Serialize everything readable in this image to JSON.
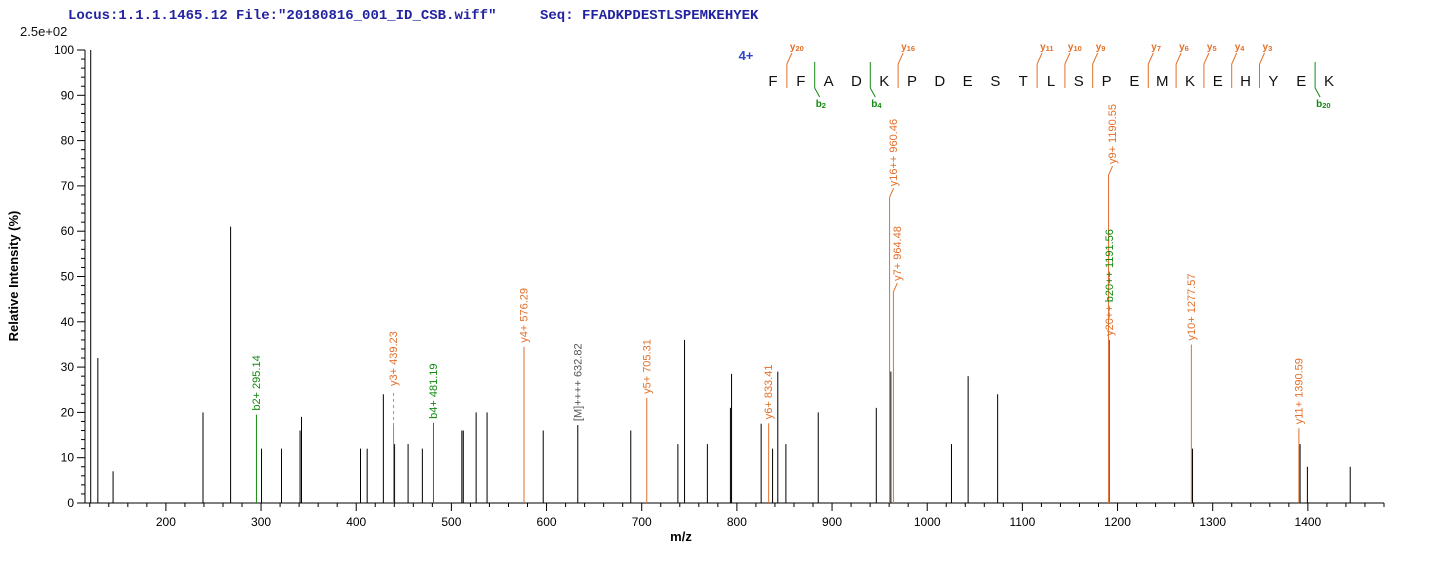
{
  "header": {
    "locus_file": "Locus:1.1.1.1465.12 File:\"20180816_001_ID_CSB.wiff\"",
    "seq": "Seq: FFADKPDESTLSPEMKEHYEK"
  },
  "scale_note": "2.5e+02",
  "chart_data": {
    "type": "bar",
    "kind": "MS/MS fragment spectrum",
    "xlabel": "m/z",
    "ylabel": "Relative Intensity (%)",
    "x_range": [
      115,
      1480
    ],
    "y_range": [
      0,
      100
    ],
    "x_major_ticks": [
      200,
      300,
      400,
      500,
      600,
      700,
      800,
      900,
      1000,
      1100,
      1200,
      1300,
      1400
    ],
    "x_minor_step": 20,
    "y_major_step": 10,
    "y_minor_step": 2,
    "colors": {
      "y_ion": "#e2702a",
      "b_ion": "#118a11",
      "overlap_ion": "#7a7a00",
      "neutral_label": "#555555",
      "peak": "#000000",
      "header_blue": "#2323a0",
      "charge_blue": "#2b47d0",
      "dashed_leader": "#999999"
    },
    "peaks": [
      [
        121,
        100
      ],
      [
        128.5,
        32
      ],
      [
        144.5,
        7
      ],
      [
        239,
        20
      ],
      [
        268,
        61
      ],
      [
        300.5,
        12
      ],
      [
        321.5,
        12
      ],
      [
        341,
        16
      ],
      [
        342.5,
        19
      ],
      [
        404.5,
        12
      ],
      [
        411.5,
        12
      ],
      [
        428.5,
        24
      ],
      [
        440.3,
        13
      ],
      [
        454.5,
        13
      ],
      [
        469.5,
        12
      ],
      [
        511,
        16
      ],
      [
        512.5,
        16
      ],
      [
        526,
        20
      ],
      [
        537.5,
        20
      ],
      [
        596.5,
        16
      ],
      [
        688.5,
        16
      ],
      [
        738,
        13
      ],
      [
        745,
        36
      ],
      [
        769,
        13
      ],
      [
        793.2,
        21
      ],
      [
        794.4,
        28.5
      ],
      [
        825.5,
        17.5
      ],
      [
        837.5,
        12
      ],
      [
        843,
        29
      ],
      [
        851.5,
        13
      ],
      [
        885.5,
        20
      ],
      [
        946.5,
        21
      ],
      [
        961.8,
        29
      ],
      [
        1025.5,
        13
      ],
      [
        1043,
        28
      ],
      [
        1074,
        24
      ],
      [
        1278.8,
        12
      ],
      [
        1391.8,
        13
      ],
      [
        1399.5,
        8
      ],
      [
        1444.5,
        8
      ]
    ],
    "annotations": [
      {
        "label": "b2+ 295.14",
        "mz": 295.14,
        "intensity": 19.5,
        "color": "b_ion",
        "leader": "none"
      },
      {
        "label": "y3+ 439.23",
        "mz": 439.23,
        "intensity": 17,
        "color": "y_ion",
        "leader": "dashed"
      },
      {
        "label": "b4+ 481.19",
        "mz": 481.19,
        "intensity": 17.7,
        "color": "b_ion",
        "leader": "none"
      },
      {
        "label": "y4+ 576.29",
        "mz": 576.29,
        "intensity": 34.5,
        "color": "y_ion",
        "leader": "none"
      },
      {
        "label": "[M]++++ 632.82",
        "mz": 632.82,
        "intensity": 17.2,
        "color": "neutral_label",
        "leader": "none",
        "line_color": "peak"
      },
      {
        "label": "y5+ 705.31",
        "mz": 705.31,
        "intensity": 23.2,
        "color": "y_ion",
        "leader": "none"
      },
      {
        "label": "y6+ 833.41",
        "mz": 833.41,
        "intensity": 17.6,
        "color": "y_ion",
        "leader": "none"
      },
      {
        "label": "y16++ 960.46",
        "mz": 960.46,
        "intensity": 67.5,
        "color": "y_ion",
        "leader": "slant"
      },
      {
        "label": "y7+ 964.48",
        "mz": 964.48,
        "intensity": 46.6,
        "color": "y_ion",
        "leader": "slant"
      },
      {
        "label": "y9+ 1190.55",
        "mz": 1190.55,
        "intensity": 72.4,
        "color": "y_ion",
        "leader": "slant"
      },
      {
        "label": "y20++ b20++ 1191.56",
        "mz": 1191.56,
        "intensity": 36,
        "color": "overlap_ion",
        "leader": "none",
        "two_tone": [
          {
            "text": "y20++ ",
            "color": "y_ion"
          },
          {
            "text": "b20++ 1191.56",
            "color": "b_ion"
          }
        ]
      },
      {
        "label": "y10+ 1277.57",
        "mz": 1277.57,
        "intensity": 35,
        "color": "y_ion",
        "leader": "none"
      },
      {
        "label": "y11+ 1390.59",
        "mz": 1390.59,
        "intensity": 16.5,
        "color": "y_ion",
        "leader": "none"
      }
    ],
    "precursor_charge": "4+",
    "sequence": [
      "F",
      "F",
      "A",
      "D",
      "K",
      "P",
      "D",
      "E",
      "S",
      "T",
      "L",
      "S",
      "P",
      "E",
      "M",
      "K",
      "E",
      "H",
      "Y",
      "E",
      "K"
    ],
    "fragment_cuts": {
      "y": [
        {
          "n": 20,
          "boundary": 1
        },
        {
          "n": 16,
          "boundary": 5
        },
        {
          "n": 11,
          "boundary": 10
        },
        {
          "n": 10,
          "boundary": 11
        },
        {
          "n": 9,
          "boundary": 12
        },
        {
          "n": 7,
          "boundary": 14
        },
        {
          "n": 6,
          "boundary": 15
        },
        {
          "n": 5,
          "boundary": 16
        },
        {
          "n": 4,
          "boundary": 17
        },
        {
          "n": 3,
          "boundary": 18
        }
      ],
      "b": [
        {
          "n": 2,
          "boundary": 2
        },
        {
          "n": 4,
          "boundary": 4
        },
        {
          "n": 20,
          "boundary": 20
        }
      ]
    }
  }
}
